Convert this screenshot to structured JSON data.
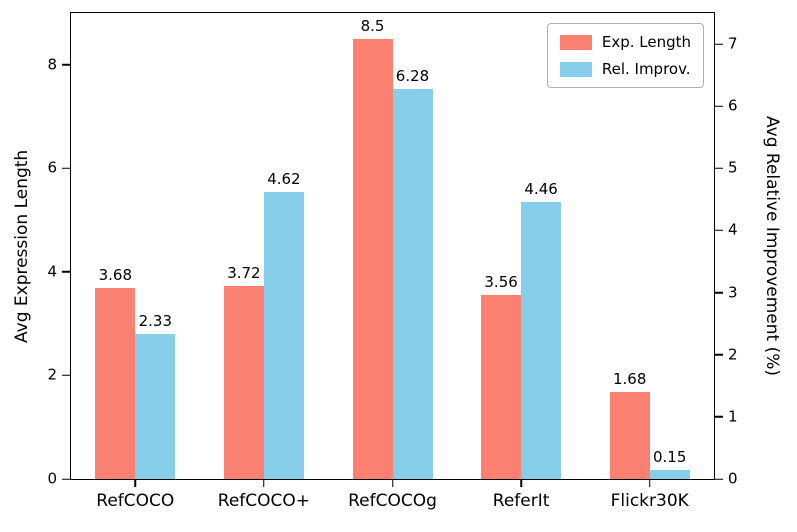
{
  "chart_data": {
    "type": "bar",
    "categories": [
      "RefCOCO",
      "RefCOCO+",
      "RefCOCOg",
      "ReferIt",
      "Flickr30K"
    ],
    "series": [
      {
        "name": "Exp. Length",
        "axis": "left",
        "color": "#FA8072",
        "values": [
          3.68,
          3.72,
          8.5,
          3.56,
          1.68
        ],
        "labels": [
          "3.68",
          "3.72",
          "8.5",
          "3.56",
          "1.68"
        ]
      },
      {
        "name": "Rel. Improv.",
        "axis": "right",
        "color": "#87CEEB",
        "values": [
          2.33,
          4.62,
          6.28,
          4.46,
          0.15
        ],
        "labels": [
          "2.33",
          "4.62",
          "6.28",
          "4.46",
          "0.15"
        ]
      }
    ],
    "left_axis": {
      "label": "Avg Expression Length",
      "ticks": [
        0,
        2,
        4,
        6,
        8
      ],
      "lim": [
        0,
        9.0
      ]
    },
    "right_axis": {
      "label": "Avg Relative Improvement (%)",
      "ticks": [
        0,
        1,
        2,
        3,
        4,
        5,
        6,
        7
      ],
      "lim": [
        0,
        7.5
      ]
    },
    "legend": {
      "position": "upper right"
    },
    "grid": false,
    "title": "",
    "xlabel": ""
  }
}
